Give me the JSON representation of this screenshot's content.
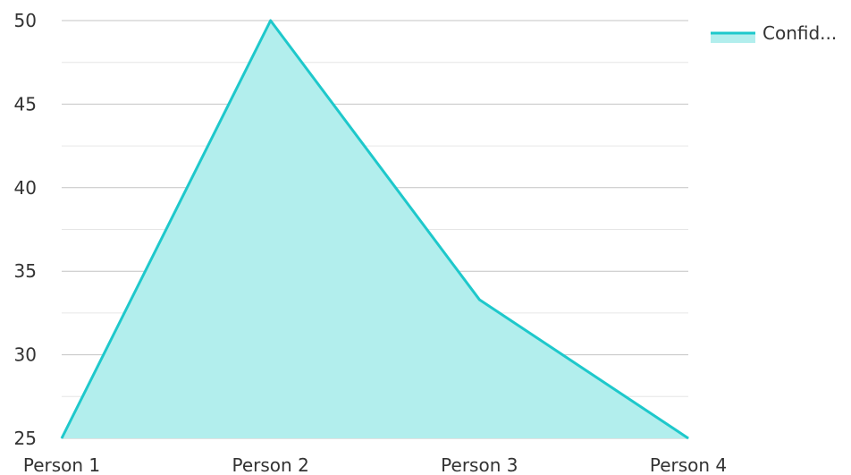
{
  "chart_data": {
    "type": "area",
    "title": "",
    "xlabel": "",
    "ylabel": "",
    "categories": [
      "Person 1",
      "Person 2",
      "Person 3",
      "Person 4"
    ],
    "y_ticks": [
      "25",
      "30",
      "35",
      "40",
      "45",
      "50"
    ],
    "ylim": [
      25,
      50
    ],
    "grid": true,
    "legend_position": "top-right",
    "series": [
      {
        "name": "Confid...",
        "values": [
          25,
          50,
          33.3,
          25
        ],
        "color": "#1ec8cb",
        "fill": "#b2eeed"
      }
    ]
  }
}
